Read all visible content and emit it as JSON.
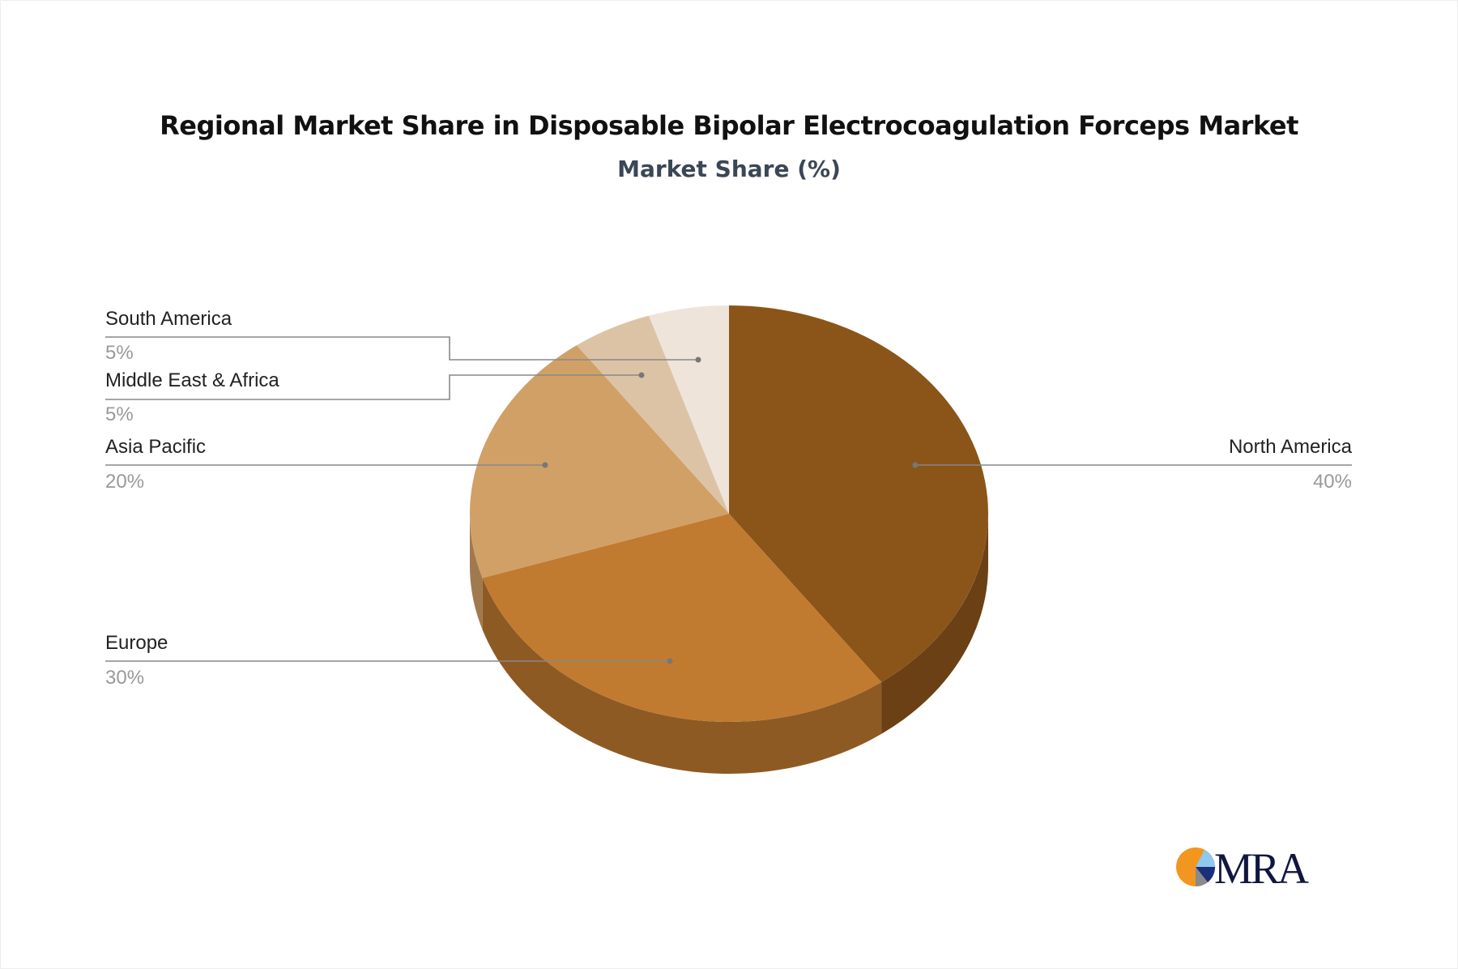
{
  "chart_data": {
    "type": "pie",
    "title": "Regional Market Share in Disposable Bipolar Electrocoagulation Forceps Market",
    "subtitle": "Market Share (%)",
    "style": "3d",
    "slices": [
      {
        "label": "North America",
        "value": 40,
        "display": "40%",
        "color": "#8B5519",
        "side_color": "#6A4014"
      },
      {
        "label": "Europe",
        "value": 30,
        "display": "30%",
        "color": "#C07B30",
        "side_color": "#8E5A23"
      },
      {
        "label": "Asia Pacific",
        "value": 20,
        "display": "20%",
        "color": "#D1A067",
        "side_color": "#A07A4E"
      },
      {
        "label": "Middle East & Africa",
        "value": 5,
        "display": "5%",
        "color": "#DDC3A6",
        "side_color": "#B09A82"
      },
      {
        "label": "South America",
        "value": 5,
        "display": "5%",
        "color": "#EEE4DA",
        "side_color": "#C9BFB5"
      }
    ]
  },
  "logo": {
    "text": "MRA"
  }
}
